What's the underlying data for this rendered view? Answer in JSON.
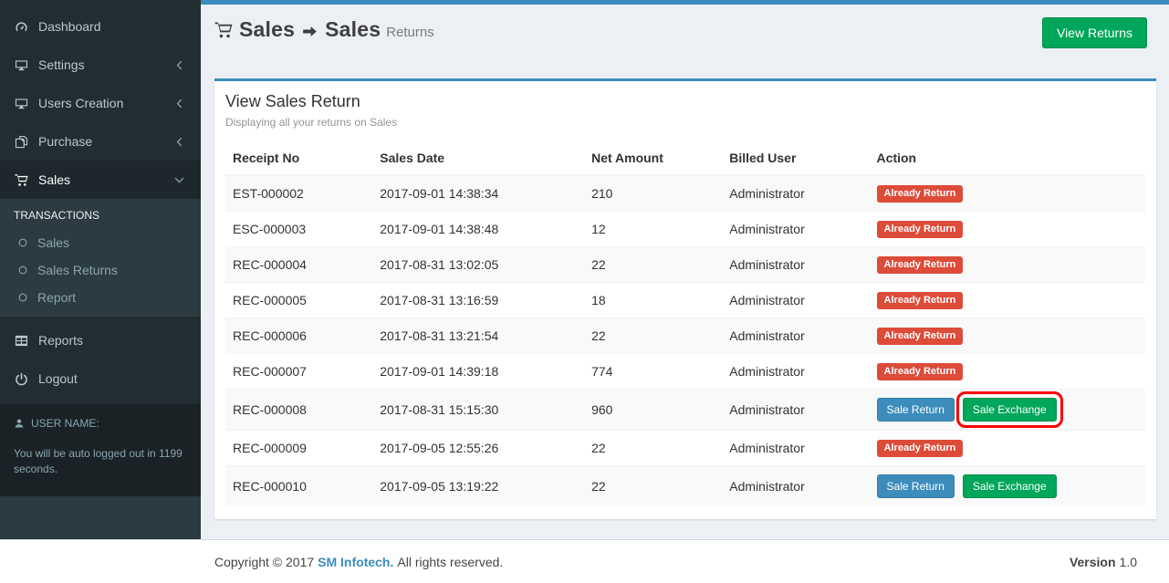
{
  "sidebar": {
    "menu_top": [
      {
        "label": "Dashboard",
        "icon": "dashboard-icon"
      },
      {
        "label": "Settings",
        "icon": "monitor-icon",
        "chevron": "left"
      },
      {
        "label": "Users Creation",
        "icon": "monitor-icon",
        "chevron": "left"
      },
      {
        "label": "Purchase",
        "icon": "files-icon",
        "chevron": "left"
      },
      {
        "label": "Sales",
        "icon": "cart-icon",
        "chevron": "down",
        "active": true
      }
    ],
    "transactions_header": "TRANSACTIONS",
    "submenu": [
      {
        "label": "Sales",
        "icon": "circle-icon"
      },
      {
        "label": "Sales Returns",
        "icon": "circle-icon"
      },
      {
        "label": "Report",
        "icon": "circle-icon"
      }
    ],
    "menu_bottom": [
      {
        "label": "Reports",
        "icon": "table-icon"
      },
      {
        "label": "Logout",
        "icon": "power-icon"
      }
    ],
    "user_label": "USER NAME:",
    "auto_logout_note": "You will be auto logged out in 1199 seconds."
  },
  "header": {
    "title_primary": "Sales",
    "title_secondary": "Sales",
    "title_small": "Returns",
    "view_returns_label": "View Returns"
  },
  "panel": {
    "title": "View Sales Return",
    "subtitle": "Displaying all your returns on Sales"
  },
  "table": {
    "columns": [
      "Receipt No",
      "Sales Date",
      "Net Amount",
      "Billed User",
      "Action"
    ],
    "rows": [
      {
        "receipt": "EST-000002",
        "date": "2017-09-01 14:38:34",
        "amount": 210,
        "user": "Administrator",
        "actions": [
          {
            "label": "Already Return",
            "style": "danger-label"
          }
        ]
      },
      {
        "receipt": "ESC-000003",
        "date": "2017-09-01 14:38:48",
        "amount": 12,
        "user": "Administrator",
        "actions": [
          {
            "label": "Already Return",
            "style": "danger-label"
          }
        ]
      },
      {
        "receipt": "REC-000004",
        "date": "2017-08-31 13:02:05",
        "amount": 22,
        "user": "Administrator",
        "actions": [
          {
            "label": "Already Return",
            "style": "danger-label"
          }
        ]
      },
      {
        "receipt": "REC-000005",
        "date": "2017-08-31 13:16:59",
        "amount": 18,
        "user": "Administrator",
        "actions": [
          {
            "label": "Already Return",
            "style": "danger-label"
          }
        ]
      },
      {
        "receipt": "REC-000006",
        "date": "2017-08-31 13:21:54",
        "amount": 22,
        "user": "Administrator",
        "actions": [
          {
            "label": "Already Return",
            "style": "danger-label"
          }
        ]
      },
      {
        "receipt": "REC-000007",
        "date": "2017-09-01 14:39:18",
        "amount": 774,
        "user": "Administrator",
        "actions": [
          {
            "label": "Already Return",
            "style": "danger-label"
          }
        ]
      },
      {
        "receipt": "REC-000008",
        "date": "2017-08-31 15:15:30",
        "amount": 960,
        "user": "Administrator",
        "actions": [
          {
            "label": "Sale Return",
            "style": "primary-button"
          },
          {
            "label": "Sale Exchange",
            "style": "success-button",
            "highlighted": true
          }
        ]
      },
      {
        "receipt": "REC-000009",
        "date": "2017-09-05 12:55:26",
        "amount": 22,
        "user": "Administrator",
        "actions": [
          {
            "label": "Already Return",
            "style": "danger-label"
          }
        ]
      },
      {
        "receipt": "REC-000010",
        "date": "2017-09-05 13:19:22",
        "amount": 22,
        "user": "Administrator",
        "actions": [
          {
            "label": "Sale Return",
            "style": "primary-button"
          },
          {
            "label": "Sale Exchange",
            "style": "success-button"
          }
        ]
      }
    ]
  },
  "footer": {
    "copyright_prefix": "Copyright © 2017",
    "brand": "SM Infotech.",
    "copyright_suffix": "All rights reserved.",
    "version_label": "Version",
    "version_value": "1.0"
  },
  "colors": {
    "accent_blue": "#3c8dbc",
    "success_green": "#00a65a",
    "danger_red": "#dd4b39",
    "annotation_red": "#ff0000",
    "sidebar_bg": "#222d32"
  }
}
